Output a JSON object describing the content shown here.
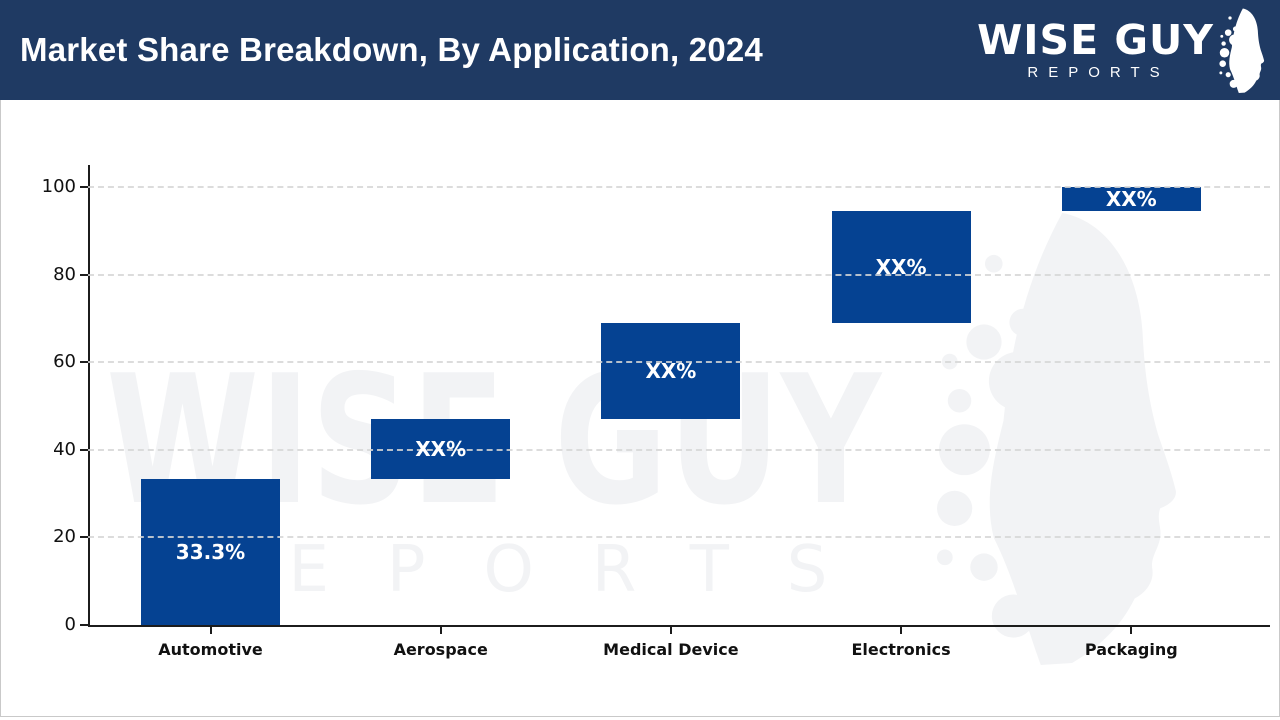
{
  "header": {
    "title": "Market Share Breakdown, By Application, 2024",
    "logo": {
      "line1": "WISE GUY",
      "line2": "REPORTS"
    }
  },
  "watermark": {
    "line1": "WISE GUY",
    "line2": "REPORTS"
  },
  "chart_data": {
    "type": "bar",
    "subtype": "waterfall",
    "title": "Market Share Breakdown, By Application, 2024",
    "categories": [
      "Automotive",
      "Aerospace",
      "Medical Device",
      "Electronics",
      "Packaging"
    ],
    "segments": [
      {
        "category": "Automotive",
        "start": 0,
        "end": 33.3,
        "label": "33.3%"
      },
      {
        "category": "Aerospace",
        "start": 33.3,
        "end": 47,
        "label": "XX%"
      },
      {
        "category": "Medical Device",
        "start": 47,
        "end": 69,
        "label": "XX%"
      },
      {
        "category": "Electronics",
        "start": 69,
        "end": 94.5,
        "label": "XX%"
      },
      {
        "category": "Packaging",
        "start": 94.5,
        "end": 100,
        "label": "XX%"
      }
    ],
    "xlabel": "",
    "ylabel": "",
    "y_ticks": [
      0,
      20,
      40,
      60,
      80,
      100
    ],
    "y_tick_labels": [
      "0",
      "20",
      "40",
      "60",
      "80",
      "100"
    ],
    "ylim": [
      0,
      105
    ],
    "grid": "horizontal-dashed",
    "legend": "none",
    "bar_color": "#054292",
    "bar_label_color": "#ffffff"
  },
  "colors": {
    "header_bg": "#1f3a63",
    "bar": "#054292",
    "axis": "#1c1c1c",
    "grid": "#d6d6d6",
    "watermark": "#f2f3f5",
    "frame_border": "#c9c9c9"
  }
}
